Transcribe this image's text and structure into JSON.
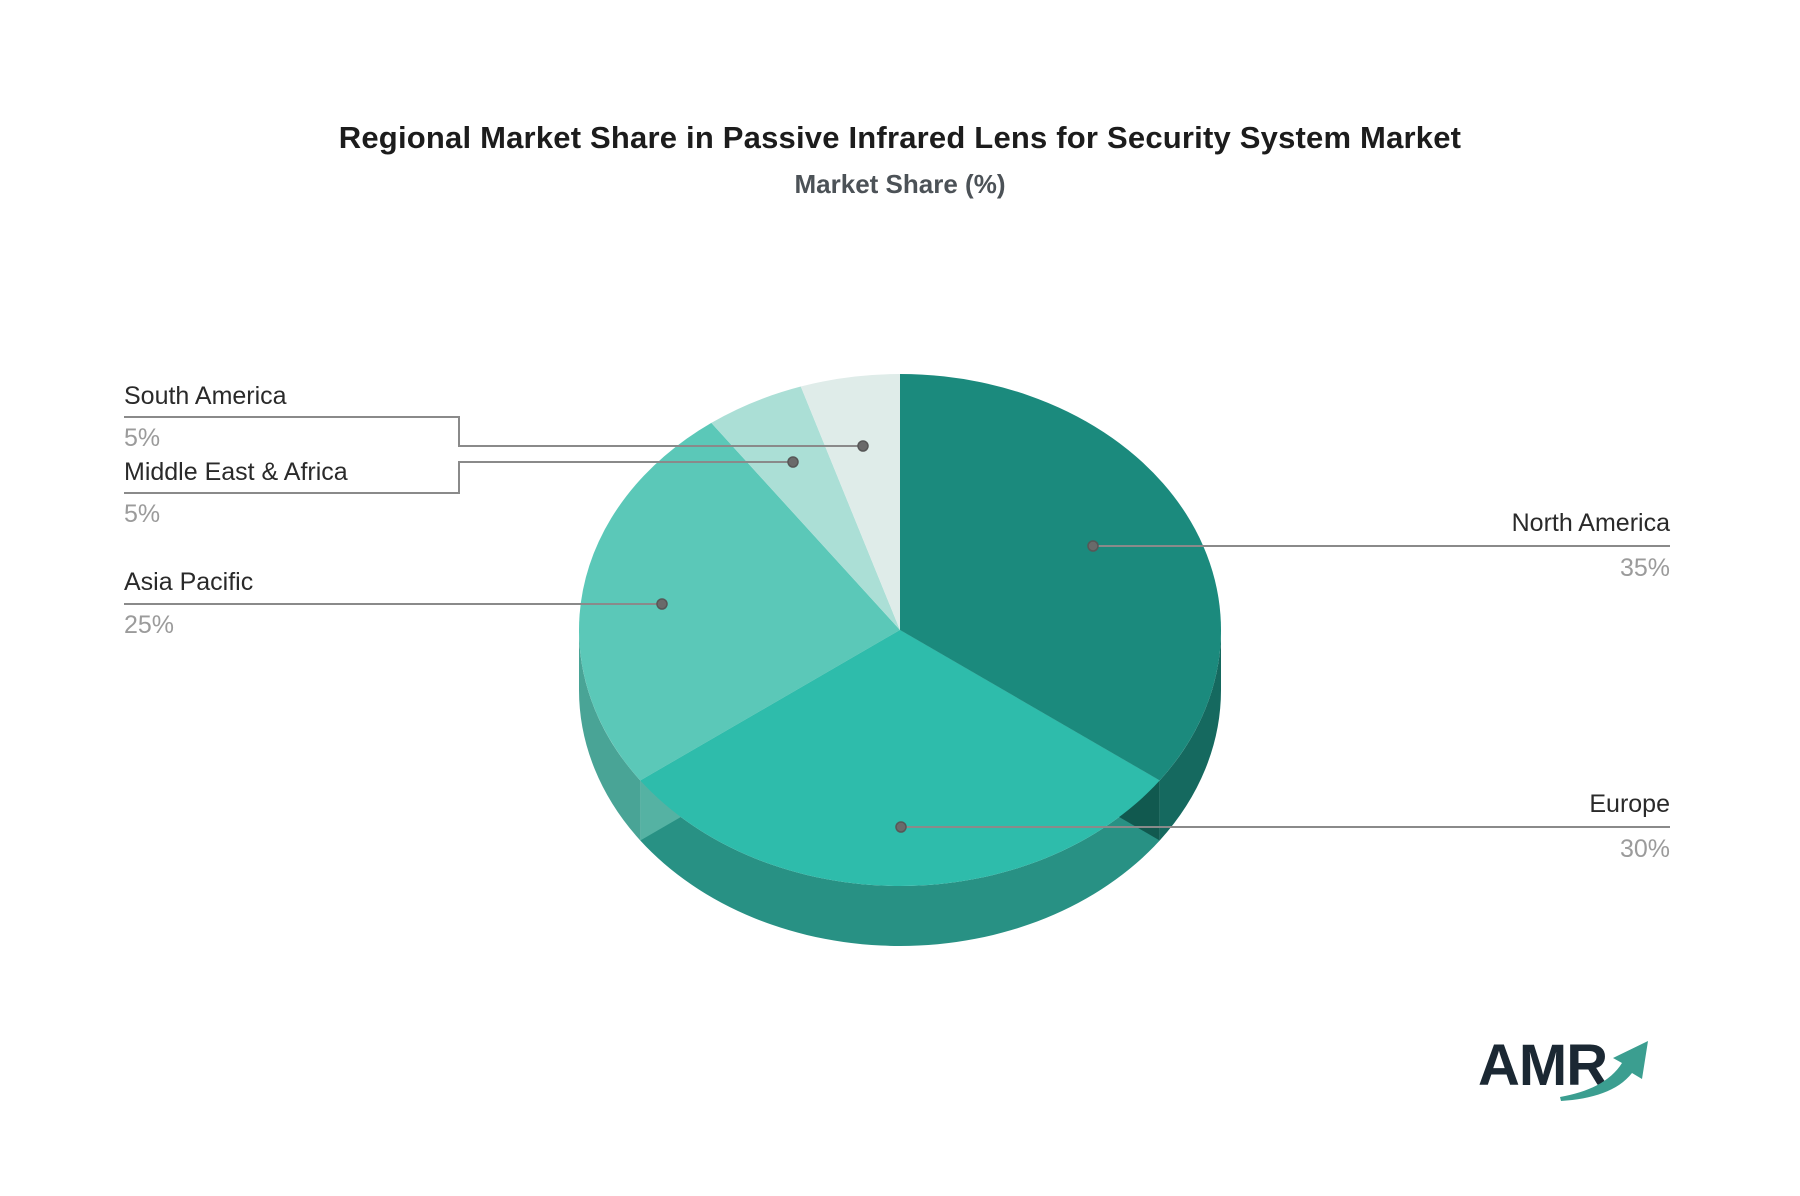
{
  "chart_data": {
    "type": "pie",
    "title": "Regional Market Share in Passive Infrared Lens for Security System Market",
    "subtitle": "Market Share (%)",
    "unit": "%",
    "start_angle": "12-o-clock-clockwise",
    "slices": [
      {
        "label": "North America",
        "value": 35,
        "pct": "35%",
        "color": "#1b8a7d",
        "side_color": "#15695f"
      },
      {
        "label": "Europe",
        "value": 30,
        "pct": "30%",
        "color": "#2ebcab",
        "side_color": "#289184"
      },
      {
        "label": "Asia Pacific",
        "value": 25,
        "pct": "25%",
        "color": "#5bc8b8",
        "side_color": "#49a496"
      },
      {
        "label": "Middle East & Africa",
        "value": 5,
        "pct": "5%",
        "color": "#abdfd6",
        "side_color": "#8fbdb4"
      },
      {
        "label": "South America",
        "value": 5,
        "pct": "5%",
        "color": "#dfece9",
        "side_color": "#c2d4cf"
      }
    ],
    "leader_color": "#8a8a8a",
    "dot_color": "#6a6a6a",
    "legend_position": "callout-labels",
    "grid": false
  },
  "logo": {
    "text": "AMR",
    "text_color": "#1b2833",
    "arrow_color": "#3b9e90"
  }
}
